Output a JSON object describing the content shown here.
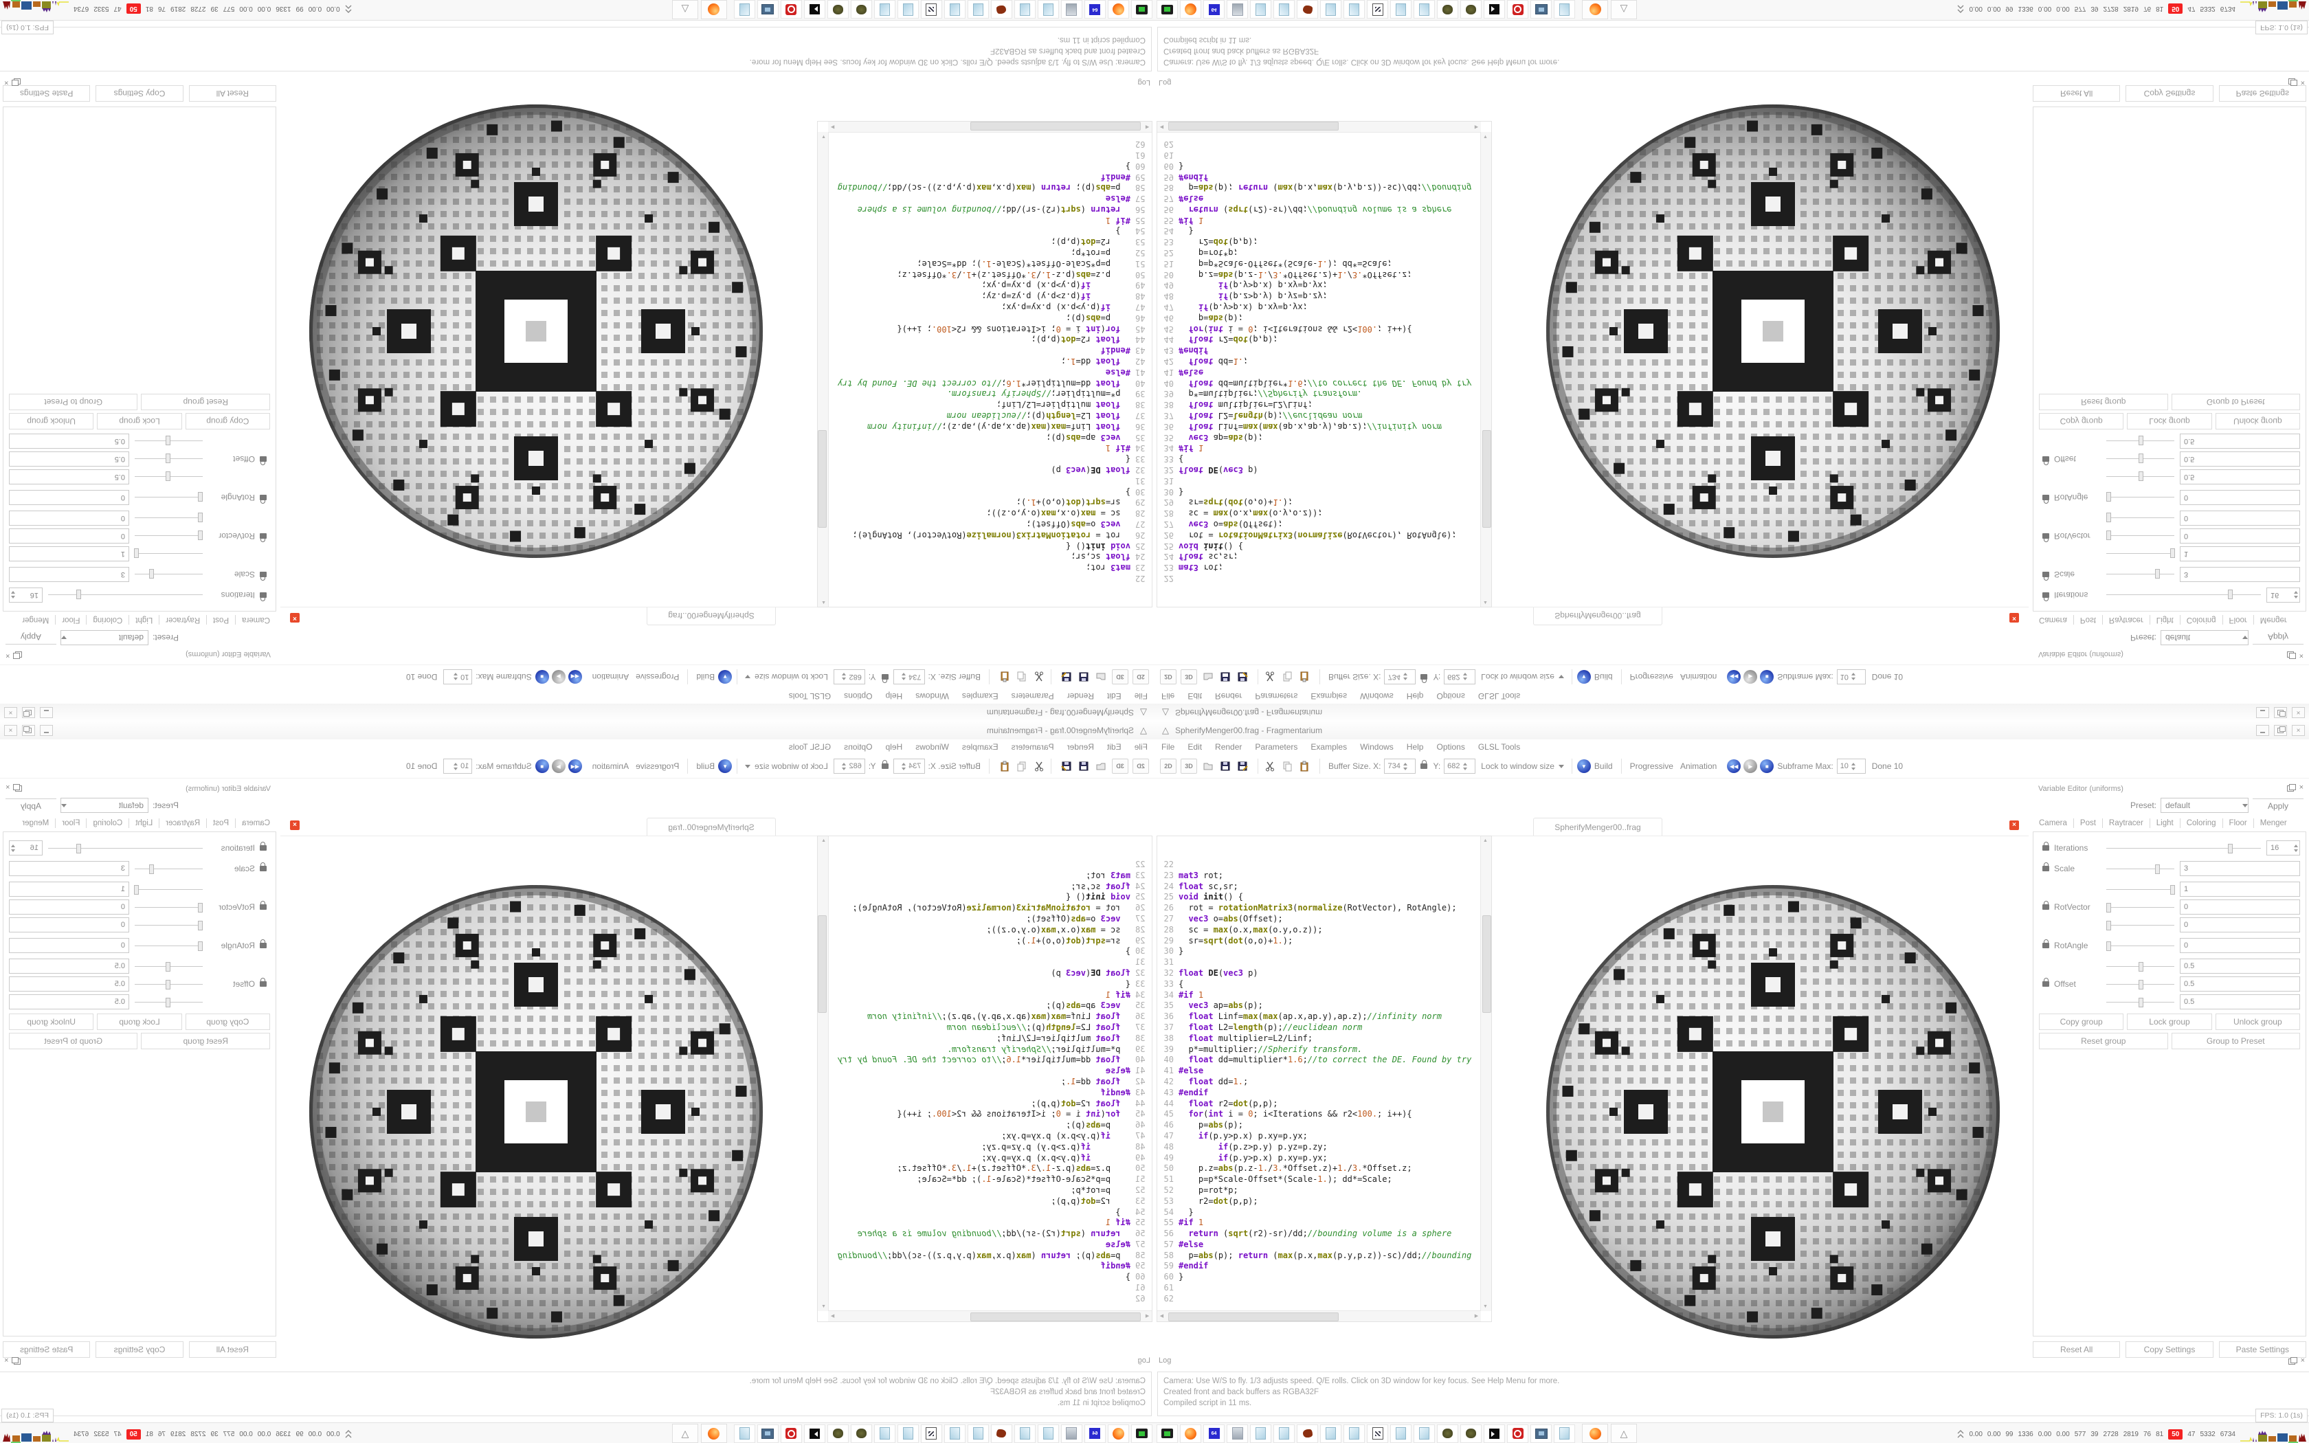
{
  "window": {
    "title": "SpherifyMenger00.frag - Fragmentarium"
  },
  "menu": {
    "items": [
      "File",
      "Edit",
      "Render",
      "Parameters",
      "Examples",
      "Windows",
      "Help",
      "Options",
      "GLSL Tools"
    ]
  },
  "toolbar": {
    "btn_2d": "2D",
    "btn_3d": "3D",
    "buffer_size_label": "Buffer Size. X:",
    "buffer_x": "734",
    "y_label": "Y:",
    "buffer_y": "682",
    "lock_window_label": "Lock to window size",
    "build_label": "Build",
    "progressive_label": "Progressive",
    "animation_label": "Animation",
    "subframe_label": "Subframe Max:",
    "subframe_value": "10",
    "done_label": "Done 10"
  },
  "editor": {
    "tab": "SpherifyMenger00..frag",
    "lines": [
      {
        "n": 22,
        "c": ""
      },
      {
        "n": 23,
        "c": "mat3 rot;"
      },
      {
        "n": 24,
        "c": "float sc,sr;"
      },
      {
        "n": 25,
        "c": "void init() {"
      },
      {
        "n": 26,
        "c": "  rot = rotationMatrix3(normalize(RotVector), RotAngle);"
      },
      {
        "n": 27,
        "c": "  vec3 o=abs(Offset);"
      },
      {
        "n": 28,
        "c": "  sc = max(o.x,max(o.y,o.z));"
      },
      {
        "n": 29,
        "c": "  sr=sqrt(dot(o,o)+1.);"
      },
      {
        "n": 30,
        "c": "}"
      },
      {
        "n": 31,
        "c": ""
      },
      {
        "n": 32,
        "c": "float DE(vec3 p)"
      },
      {
        "n": 33,
        "c": "{"
      },
      {
        "n": 34,
        "c": "#if 1"
      },
      {
        "n": 35,
        "c": "  vec3 ap=abs(p);"
      },
      {
        "n": 36,
        "c": "  float Linf=max(max(ap.x,ap.y),ap.z);//infinity norm"
      },
      {
        "n": 37,
        "c": "  float L2=length(p);//euclidean norm"
      },
      {
        "n": 38,
        "c": "  float multiplier=L2/Linf;"
      },
      {
        "n": 39,
        "c": "  p*=multiplier;//Spherify transform."
      },
      {
        "n": 40,
        "c": "  float dd=multiplier*1.6;//to correct the DE. Found by try"
      },
      {
        "n": 41,
        "c": "#else"
      },
      {
        "n": 42,
        "c": "  float dd=1.;"
      },
      {
        "n": 43,
        "c": "#endif"
      },
      {
        "n": 44,
        "c": "  float r2=dot(p,p);"
      },
      {
        "n": 45,
        "c": "  for(int i = 0; i<Iterations && r2<100.; i++){"
      },
      {
        "n": 46,
        "c": "    p=abs(p);"
      },
      {
        "n": 47,
        "c": "    if(p.y>p.x) p.xy=p.yx;"
      },
      {
        "n": 48,
        "c": "        if(p.z>p.y) p.yz=p.zy;"
      },
      {
        "n": 49,
        "c": "        if(p.y>p.x) p.xy=p.yx;"
      },
      {
        "n": 50,
        "c": "    p.z=abs(p.z-1./3.*Offset.z)+1./3.*Offset.z;"
      },
      {
        "n": 51,
        "c": "    p=p*Scale-Offset*(Scale-1.); dd*=Scale;"
      },
      {
        "n": 52,
        "c": "    p=rot*p;"
      },
      {
        "n": 53,
        "c": "    r2=dot(p,p);"
      },
      {
        "n": 54,
        "c": "  }"
      },
      {
        "n": 55,
        "c": "#if 1"
      },
      {
        "n": 56,
        "c": "  return (sqrt(r2)-sr)/dd;//bounding volume is a sphere"
      },
      {
        "n": 57,
        "c": "#else"
      },
      {
        "n": 58,
        "c": "  p=abs(p); return (max(p.x,max(p.y,p.z))-sc)/dd;//bounding"
      },
      {
        "n": 59,
        "c": "#endif"
      },
      {
        "n": 60,
        "c": "}"
      },
      {
        "n": 61,
        "c": ""
      },
      {
        "n": 62,
        "c": ""
      }
    ]
  },
  "variable_editor": {
    "title": "Variable Editor (uniforms)",
    "preset_label": "Preset:",
    "preset_value": "default",
    "apply_label": "Apply",
    "tabs": [
      "Camera",
      "Post",
      "Raytracer",
      "Light",
      "Coloring",
      "Floor",
      "Menger"
    ],
    "active_tab": "Menger",
    "params": [
      {
        "label": "Iterations",
        "rows": [
          {
            "value": "16",
            "t": 0.8,
            "spin": true
          }
        ]
      },
      {
        "label": "Scale",
        "rows": [
          {
            "value": "3",
            "t": 0.75
          }
        ]
      },
      {
        "label": "RotVector",
        "rows": [
          {
            "value": "1",
            "t": 0.97
          },
          {
            "value": "0",
            "t": 0.03
          },
          {
            "value": "0",
            "t": 0.03
          }
        ]
      },
      {
        "label": "RotAngle",
        "rows": [
          {
            "value": "0",
            "t": 0.03
          }
        ]
      },
      {
        "label": "Offset",
        "rows": [
          {
            "value": "0.5",
            "t": 0.5
          },
          {
            "value": "0.5",
            "t": 0.5
          },
          {
            "value": "0.5",
            "t": 0.5
          }
        ]
      }
    ],
    "group_buttons": [
      [
        "Copy group",
        "Lock group",
        "Unlock group"
      ],
      [
        "Reset group",
        "Group to Preset"
      ]
    ],
    "bottom_buttons": [
      "Reset All",
      "Copy Settings",
      "Paste Settings"
    ]
  },
  "log": {
    "title": "Log",
    "lines": [
      "Camera: Use W/S to fly. 1/3 adjusts speed. Q/E rolls. Click on 3D window for key focus. See Help Menu for more.",
      "Created front and back buffers as RGBA32F",
      "Compiled script in 11 ms."
    ]
  },
  "status": {
    "fps": "FPS: 1.0 (1s)"
  },
  "taskbar": {
    "small_icons": [
      "monitor-green",
      "firefox",
      "floppy-64",
      "script",
      "note",
      "note",
      "splat",
      "note",
      "note",
      "image-doc",
      "note",
      "note",
      "blob",
      "blob",
      "bw-shape",
      "red-gear",
      "capture",
      "note"
    ],
    "app_buttons": [
      "firefox",
      "fragmentarium-active"
    ],
    "monitor_values": [
      "0.00",
      "0.00",
      "99",
      "1336",
      "0.00",
      "0.00",
      "577",
      "39",
      "2728",
      "2819",
      "76",
      "81",
      "50",
      "47",
      "5332",
      "6734"
    ],
    "monitor_alert_value": "50"
  },
  "colors": {
    "accent_red": "#e8482a",
    "build_blue": "#2a46b8",
    "alert_red": "#f42222"
  }
}
